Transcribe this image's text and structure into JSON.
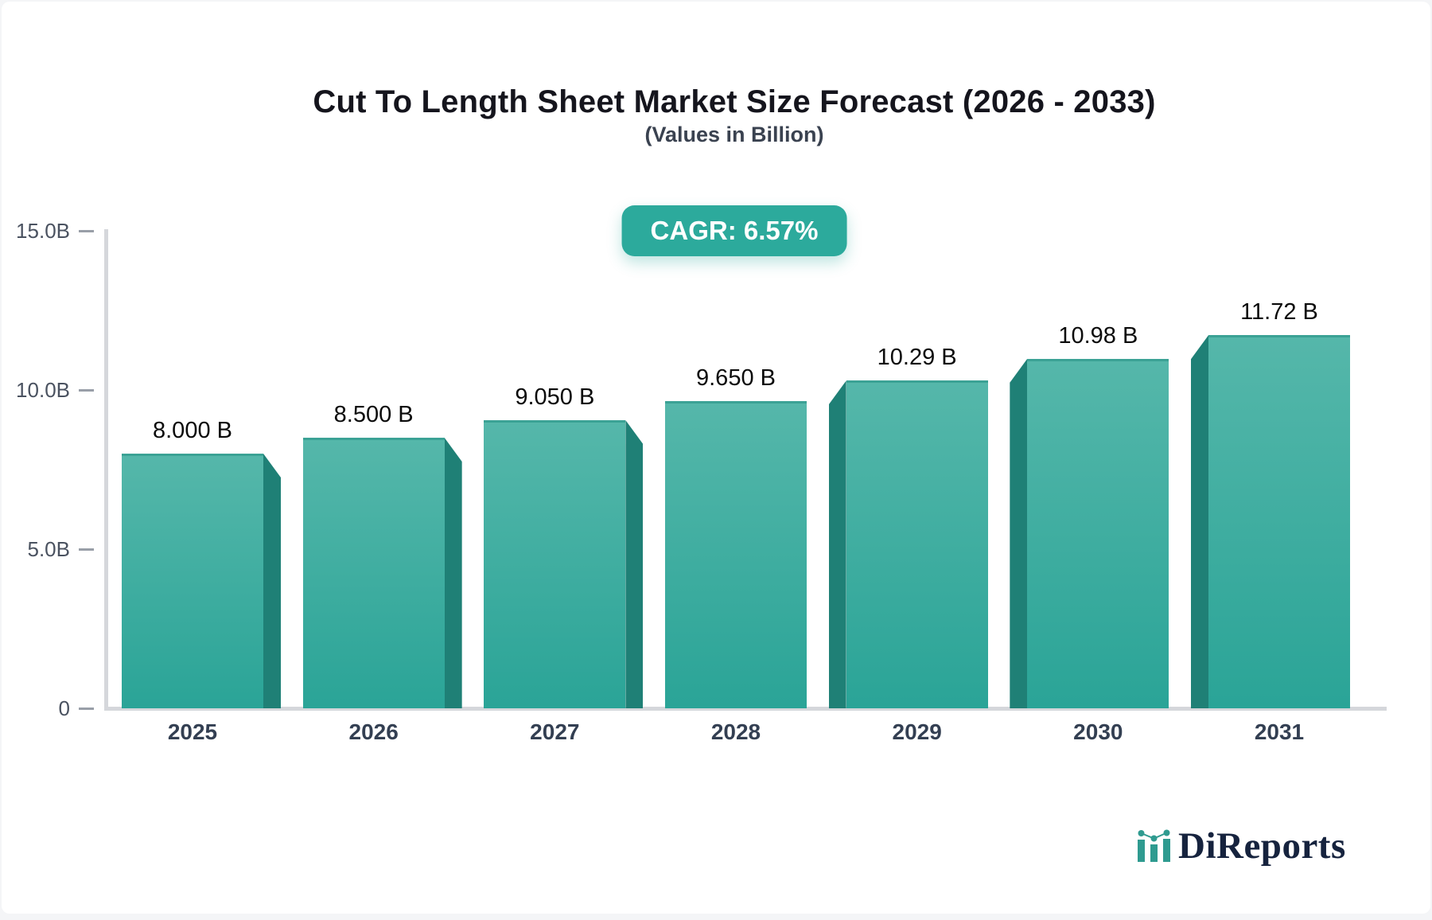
{
  "chart": {
    "title": "Cut To Length Sheet Market Size Forecast (2026 - 2033)",
    "subtitle": "(Values in Billion)",
    "cagr_label": "CAGR: 6.57%"
  },
  "chart_data": {
    "type": "bar",
    "categories": [
      "2025",
      "2026",
      "2027",
      "2028",
      "2029",
      "2030",
      "2031"
    ],
    "values": [
      8.0,
      8.5,
      9.05,
      9.65,
      10.29,
      10.98,
      11.72
    ],
    "value_labels": [
      "8.000 B",
      "8.500 B",
      "9.050 B",
      "9.650 B",
      "10.29 B",
      "10.98 B",
      "11.72 B"
    ],
    "title": "Cut To Length Sheet Market Size Forecast (2026 - 2033)",
    "subtitle": "(Values in Billion)",
    "xlabel": "",
    "ylabel": "",
    "ylim": [
      0,
      15
    ],
    "grid": false,
    "legend": "none",
    "yticks": [
      {
        "label": "15.0B",
        "value": 15
      },
      {
        "label": "10.0B",
        "value": 10
      },
      {
        "label": "5.0B",
        "value": 5
      },
      {
        "label": "0",
        "value": 0
      }
    ],
    "annotations": [
      "CAGR: 6.57%"
    ]
  },
  "theme": {
    "page-bg": "#f4f5f7",
    "title-color": "#15151d",
    "subtitle-color": "#3a4250",
    "badge-bg": "#2caa9c",
    "bar-face-top": "#55b7aa",
    "bar-face-bottom": "#2aa497",
    "bar-edge": "#3ba295",
    "bar-side": "#1f8076",
    "axis-color": "#d5d7db",
    "tick-color": "#999fa8",
    "ylabel-color": "#4a5260",
    "xlabel-color": "#333f52",
    "value-color": "#0b0b0b",
    "logo-navy": "#16233e",
    "logo-teal": "#2f9b90"
  },
  "logo": {
    "text": "DiReports"
  }
}
